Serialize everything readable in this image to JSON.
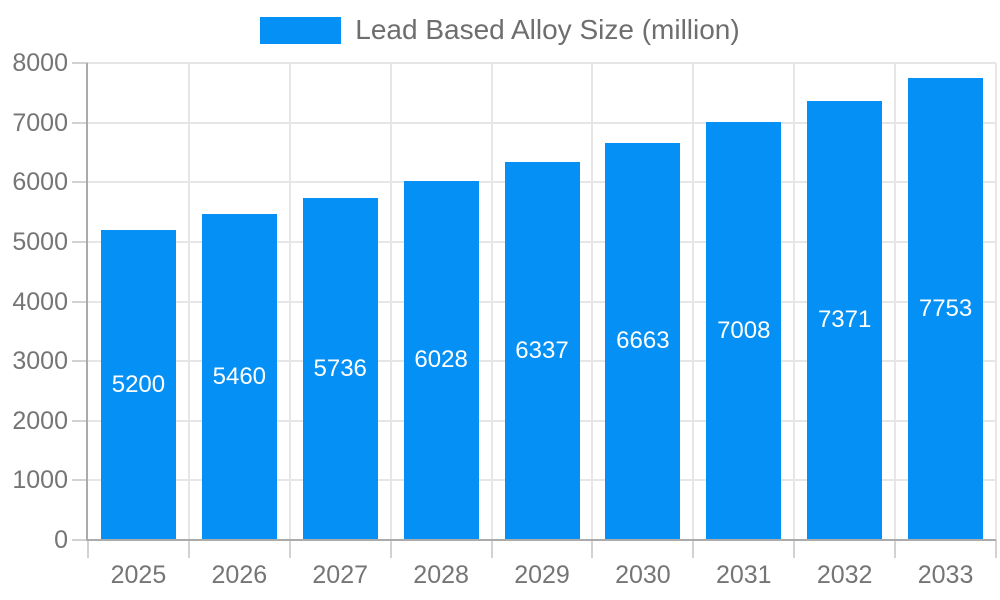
{
  "legend": {
    "label": "Lead Based Alloy Size (million)"
  },
  "chart_data": {
    "type": "bar",
    "title": "",
    "categories": [
      "2025",
      "2026",
      "2027",
      "2028",
      "2029",
      "2030",
      "2031",
      "2032",
      "2033"
    ],
    "series": [
      {
        "name": "Lead Based Alloy Size (million)",
        "values": [
          5200,
          5460,
          5736,
          6028,
          6337,
          6663,
          7008,
          7371,
          7753
        ]
      }
    ],
    "value_labels": "inside-center",
    "xlabel": "",
    "ylabel": "",
    "ylim": [
      0,
      8000
    ],
    "yticks": [
      0,
      1000,
      2000,
      3000,
      4000,
      5000,
      6000,
      7000,
      8000
    ],
    "grid": true,
    "legend_position": "top-center",
    "colors": {
      "bar": "#0590f5",
      "value_label": "#ffffff",
      "axis_text": "#757575",
      "legend_text": "#6e6e6e",
      "gridline": "#e6e6e6",
      "axis_line": "#ababab",
      "tick": "#d2d2d2",
      "background": "#ffffff"
    }
  }
}
